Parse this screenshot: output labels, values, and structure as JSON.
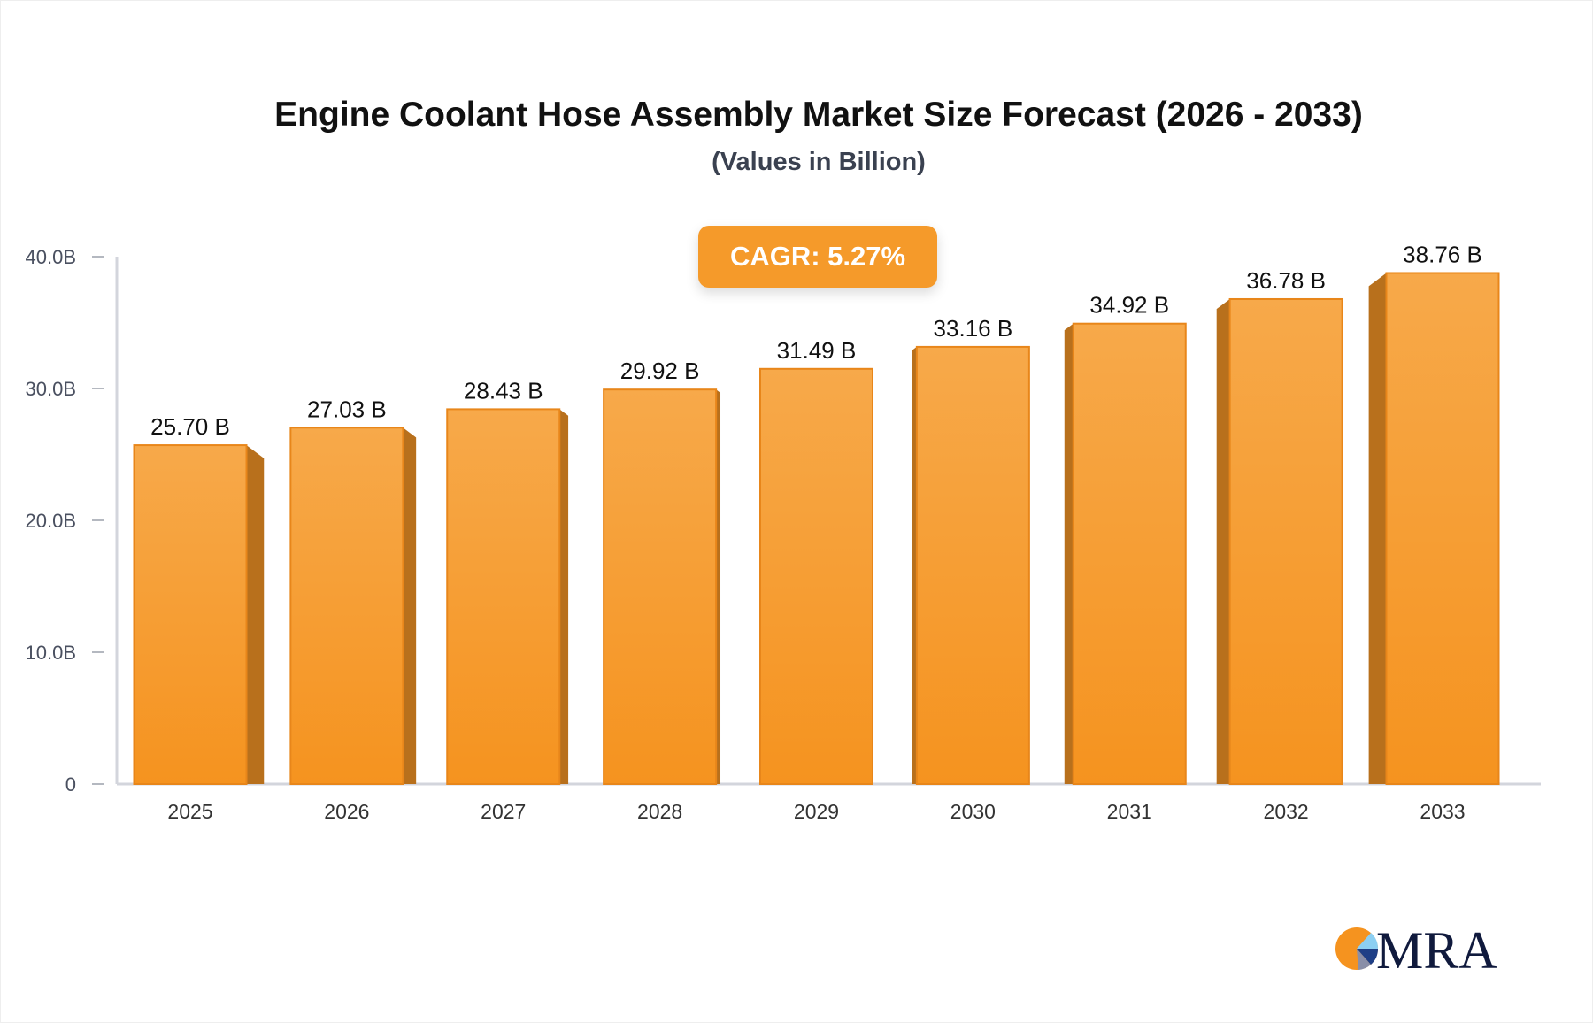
{
  "chart_data": {
    "type": "bar",
    "title": "Engine Coolant Hose Assembly Market Size Forecast (2026 - 2033)",
    "subtitle": "(Values in Billion)",
    "annotation": "CAGR: 5.27%",
    "categories": [
      "2025",
      "2026",
      "2027",
      "2028",
      "2029",
      "2030",
      "2031",
      "2032",
      "2033"
    ],
    "values": [
      25.7,
      27.03,
      28.43,
      29.92,
      31.49,
      33.16,
      34.92,
      36.78,
      38.76
    ],
    "data_labels": [
      "25.70 B",
      "27.03 B",
      "28.43 B",
      "29.92 B",
      "31.49 B",
      "33.16 B",
      "34.92 B",
      "36.78 B",
      "38.76 B"
    ],
    "yticks": [
      0,
      10,
      20,
      30,
      40
    ],
    "ytick_labels": [
      "0",
      "10.0B",
      "20.0B",
      "30.0B",
      "40.0B"
    ],
    "ylim": [
      0,
      40
    ],
    "xlabel": "",
    "ylabel": "",
    "grid": false,
    "colors": {
      "bar_front": "#f7a94a",
      "bar_bottom": "#f5931f",
      "bar_side": "#b8701c",
      "cagr_bg": "#f59a2a"
    }
  },
  "logo": {
    "text": "MRA"
  }
}
